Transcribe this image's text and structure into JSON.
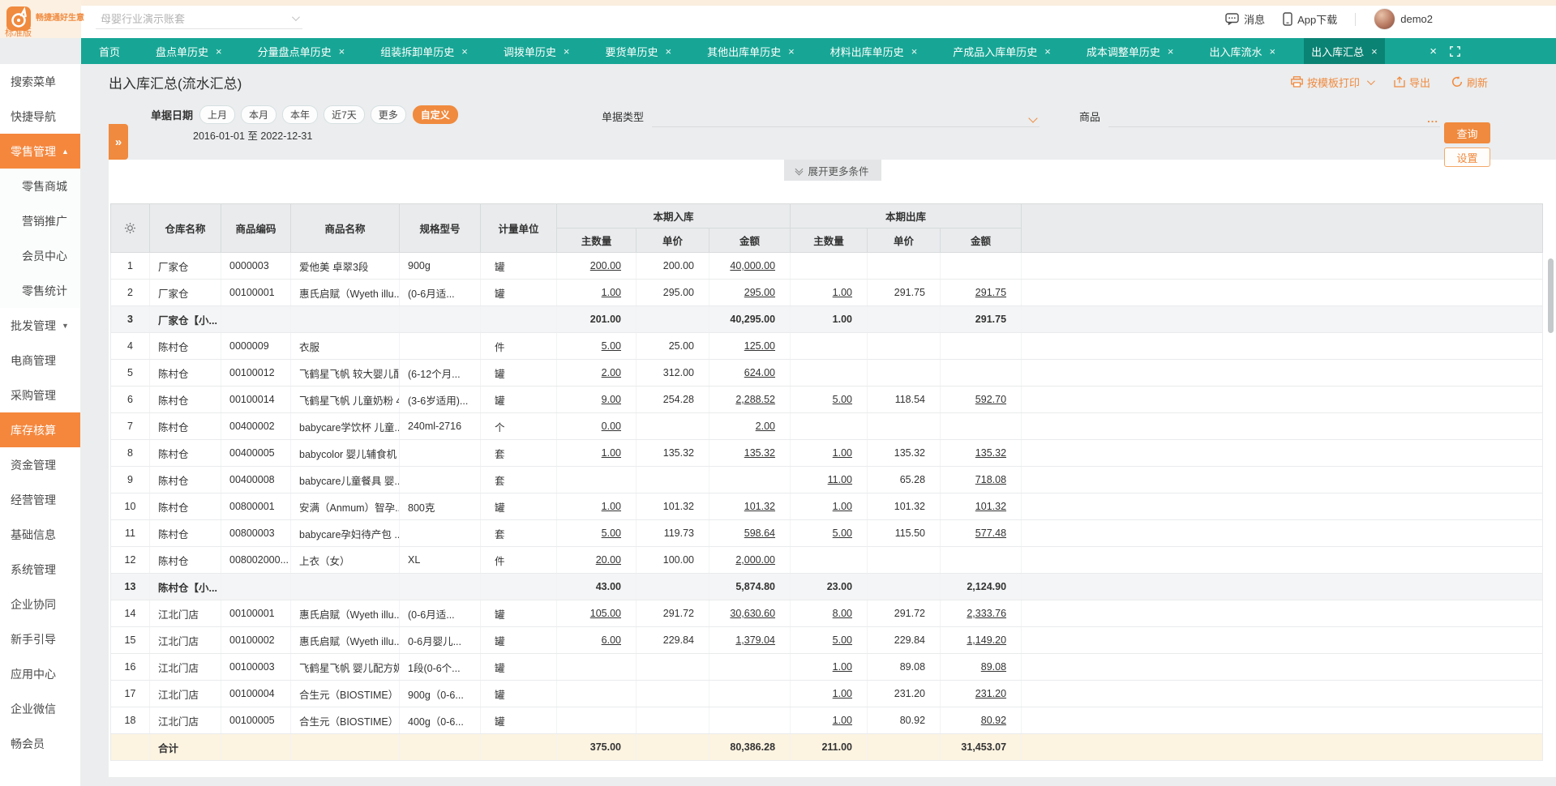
{
  "topbar": {
    "brand": "畅捷通好生意",
    "edition": "标准版",
    "account": "母婴行业演示账套",
    "messages": "消息",
    "app_download": "App下载",
    "username": "demo2"
  },
  "tabbar": {
    "tabs": [
      {
        "key": "home",
        "label": "首页",
        "closable": false,
        "active": false
      },
      {
        "key": "inventory-check-history",
        "label": "盘点单历史",
        "closable": true,
        "active": false
      },
      {
        "key": "weighed-check-history",
        "label": "分量盘点单历史",
        "closable": true,
        "active": false
      },
      {
        "key": "assembly-history",
        "label": "组装拆卸单历史",
        "closable": true,
        "active": false
      },
      {
        "key": "transfer-history",
        "label": "调拨单历史",
        "closable": true,
        "active": false
      },
      {
        "key": "requisition-history",
        "label": "要货单历史",
        "closable": true,
        "active": false
      },
      {
        "key": "other-outbound-history",
        "label": "其他出库单历史",
        "closable": true,
        "active": false
      },
      {
        "key": "material-outbound-history",
        "label": "材料出库单历史",
        "closable": true,
        "active": false
      },
      {
        "key": "finished-inbound-history",
        "label": "产成品入库单历史",
        "closable": true,
        "active": false
      },
      {
        "key": "cost-adjust-history",
        "label": "成本调整单历史",
        "closable": true,
        "active": false
      },
      {
        "key": "inout-flow",
        "label": "出入库流水",
        "closable": true,
        "active": false
      },
      {
        "key": "inout-summary",
        "label": "出入库汇总",
        "closable": true,
        "active": true
      }
    ]
  },
  "sidebar": {
    "items": [
      {
        "key": "search-menu",
        "label": "搜索菜单"
      },
      {
        "key": "quick-nav",
        "label": "快捷导航"
      },
      {
        "key": "retail-mgmt",
        "label": "零售管理",
        "active": true,
        "arrow": "up"
      },
      {
        "key": "retail-mall",
        "label": "零售商城",
        "sub": true
      },
      {
        "key": "marketing",
        "label": "营销推广",
        "sub": true
      },
      {
        "key": "member-center",
        "label": "会员中心",
        "sub": true
      },
      {
        "key": "retail-stats",
        "label": "零售统计",
        "sub": true
      },
      {
        "key": "wholesale-mgmt",
        "label": "批发管理",
        "arrow": "down"
      },
      {
        "key": "ecommerce-mgmt",
        "label": "电商管理"
      },
      {
        "key": "purchase-mgmt",
        "label": "采购管理"
      },
      {
        "key": "inventory-accounting",
        "label": "库存核算",
        "active": true
      },
      {
        "key": "finance-mgmt",
        "label": "资金管理"
      },
      {
        "key": "operation-mgmt",
        "label": "经营管理"
      },
      {
        "key": "basic-info",
        "label": "基础信息"
      },
      {
        "key": "system-mgmt",
        "label": "系统管理"
      },
      {
        "key": "enterprise-collab",
        "label": "企业协同"
      },
      {
        "key": "newbie-guide",
        "label": "新手引导"
      },
      {
        "key": "app-center",
        "label": "应用中心"
      },
      {
        "key": "enterprise-wechat",
        "label": "企业微信"
      },
      {
        "key": "chang-member",
        "label": "畅会员"
      }
    ]
  },
  "page": {
    "title": "出入库汇总(流水汇总)",
    "actions": {
      "print": "按模板打印",
      "export": "导出",
      "refresh": "刷新"
    }
  },
  "filters": {
    "date_label": "单据日期",
    "date_presets": [
      "上月",
      "本月",
      "本年",
      "近7天",
      "更多"
    ],
    "custom_label": "自定义",
    "date_range": "2016-01-01 至 2022-12-31",
    "doc_type_label": "单据类型",
    "product_label": "商品",
    "search_label": "查询",
    "settings_label": "设置",
    "expand_label": "展开更多条件"
  },
  "icons": {
    "close": "×",
    "arrow_up": "▲",
    "arrow_down": "▼",
    "double_right": "»",
    "ellipsis": "..."
  },
  "colors": {
    "accent_orange": "#f08a3e",
    "teal": "#17a695",
    "teal_active_tab": "#0a8374",
    "total_row_bg": "#fcf3e1",
    "header_bg": "#e9ebed"
  },
  "table": {
    "columns": {
      "warehouse": "仓库名称",
      "code": "商品编码",
      "name": "商品名称",
      "spec": "规格型号",
      "unit": "计量单位"
    },
    "group_in": "本期入库",
    "group_out": "本期出库",
    "sub_cols": [
      "主数量",
      "单价",
      "金额"
    ],
    "rows": [
      {
        "type": "data",
        "n": "1",
        "warehouse": "厂家仓",
        "code": "0000003",
        "name": "爱他美 卓翠3段",
        "spec": "900g",
        "unit": "罐",
        "in_qty": "200.00",
        "in_price": "200.00",
        "in_amt": "40,000.00",
        "out_qty": "",
        "out_price": "",
        "out_amt": ""
      },
      {
        "type": "data",
        "n": "2",
        "warehouse": "厂家仓",
        "code": "00100001",
        "name": "惠氏启赋（Wyeth illu...",
        "spec": "(0-6月适...",
        "unit": "罐",
        "in_qty": "1.00",
        "in_price": "295.00",
        "in_amt": "295.00",
        "out_qty": "1.00",
        "out_price": "291.75",
        "out_amt": "291.75"
      },
      {
        "type": "subtotal",
        "n": "3",
        "warehouse": "厂家仓【小...",
        "code": "",
        "name": "",
        "spec": "",
        "unit": "",
        "in_qty": "201.00",
        "in_price": "",
        "in_amt": "40,295.00",
        "out_qty": "1.00",
        "out_price": "",
        "out_amt": "291.75"
      },
      {
        "type": "data",
        "n": "4",
        "warehouse": "陈村仓",
        "code": "0000009",
        "name": "衣服",
        "spec": "",
        "unit": "件",
        "in_qty": "5.00",
        "in_price": "25.00",
        "in_amt": "125.00",
        "out_qty": "",
        "out_price": "",
        "out_amt": ""
      },
      {
        "type": "data",
        "n": "5",
        "warehouse": "陈村仓",
        "code": "00100012",
        "name": "飞鹤星飞帆 较大婴儿配...",
        "spec": "(6-12个月...",
        "unit": "罐",
        "in_qty": "2.00",
        "in_price": "312.00",
        "in_amt": "624.00",
        "out_qty": "",
        "out_price": "",
        "out_amt": ""
      },
      {
        "type": "data",
        "n": "6",
        "warehouse": "陈村仓",
        "code": "00100014",
        "name": "飞鹤星飞帆 儿童奶粉 4...",
        "spec": "(3-6岁适用)...",
        "unit": "罐",
        "in_qty": "9.00",
        "in_price": "254.28",
        "in_amt": "2,288.52",
        "out_qty": "5.00",
        "out_price": "118.54",
        "out_amt": "592.70"
      },
      {
        "type": "data",
        "n": "7",
        "warehouse": "陈村仓",
        "code": "00400002",
        "name": "babycare学饮杯 儿童...",
        "spec": "240ml-2716",
        "unit": "个",
        "in_qty": "0.00",
        "in_price": "",
        "in_amt": "2.00",
        "out_qty": "",
        "out_price": "",
        "out_amt": ""
      },
      {
        "type": "data",
        "n": "8",
        "warehouse": "陈村仓",
        "code": "00400005",
        "name": "babycolor 婴儿辅食机 ...",
        "spec": "",
        "unit": "套",
        "in_qty": "1.00",
        "in_price": "135.32",
        "in_amt": "135.32",
        "out_qty": "1.00",
        "out_price": "135.32",
        "out_amt": "135.32"
      },
      {
        "type": "data",
        "n": "9",
        "warehouse": "陈村仓",
        "code": "00400008",
        "name": "babycare儿童餐具 婴...",
        "spec": "",
        "unit": "套",
        "in_qty": "",
        "in_price": "",
        "in_amt": "",
        "out_qty": "11.00",
        "out_price": "65.28",
        "out_amt": "718.08"
      },
      {
        "type": "data",
        "n": "10",
        "warehouse": "陈村仓",
        "code": "00800001",
        "name": "安满（Anmum）智孕...",
        "spec": "800克",
        "unit": "罐",
        "in_qty": "1.00",
        "in_price": "101.32",
        "in_amt": "101.32",
        "out_qty": "1.00",
        "out_price": "101.32",
        "out_amt": "101.32"
      },
      {
        "type": "data",
        "n": "11",
        "warehouse": "陈村仓",
        "code": "00800003",
        "name": "babycare孕妇待产包 ...",
        "spec": "",
        "unit": "套",
        "in_qty": "5.00",
        "in_price": "119.73",
        "in_amt": "598.64",
        "out_qty": "5.00",
        "out_price": "115.50",
        "out_amt": "577.48"
      },
      {
        "type": "data",
        "n": "12",
        "warehouse": "陈村仓",
        "code": "008002000...",
        "name": "上衣（女）",
        "spec": "XL",
        "unit": "件",
        "in_qty": "20.00",
        "in_price": "100.00",
        "in_amt": "2,000.00",
        "out_qty": "",
        "out_price": "",
        "out_amt": ""
      },
      {
        "type": "subtotal",
        "n": "13",
        "warehouse": "陈村仓【小...",
        "code": "",
        "name": "",
        "spec": "",
        "unit": "",
        "in_qty": "43.00",
        "in_price": "",
        "in_amt": "5,874.80",
        "out_qty": "23.00",
        "out_price": "",
        "out_amt": "2,124.90"
      },
      {
        "type": "data",
        "n": "14",
        "warehouse": "江北门店",
        "code": "00100001",
        "name": "惠氏启赋（Wyeth illu...",
        "spec": "(0-6月适...",
        "unit": "罐",
        "in_qty": "105.00",
        "in_price": "291.72",
        "in_amt": "30,630.60",
        "out_qty": "8.00",
        "out_price": "291.72",
        "out_amt": "2,333.76"
      },
      {
        "type": "data",
        "n": "15",
        "warehouse": "江北门店",
        "code": "00100002",
        "name": "惠氏启赋（Wyeth illu...",
        "spec": "0-6月婴儿...",
        "unit": "罐",
        "in_qty": "6.00",
        "in_price": "229.84",
        "in_amt": "1,379.04",
        "out_qty": "5.00",
        "out_price": "229.84",
        "out_amt": "1,149.20"
      },
      {
        "type": "data",
        "n": "16",
        "warehouse": "江北门店",
        "code": "00100003",
        "name": "飞鹤星飞帆 婴儿配方奶...",
        "spec": "1段(0-6个...",
        "unit": "罐",
        "in_qty": "",
        "in_price": "",
        "in_amt": "",
        "out_qty": "1.00",
        "out_price": "89.08",
        "out_amt": "89.08"
      },
      {
        "type": "data",
        "n": "17",
        "warehouse": "江北门店",
        "code": "00100004",
        "name": "合生元（BIOSTIME）...",
        "spec": "900g（0-6...",
        "unit": "罐",
        "in_qty": "",
        "in_price": "",
        "in_amt": "",
        "out_qty": "1.00",
        "out_price": "231.20",
        "out_amt": "231.20"
      },
      {
        "type": "data",
        "n": "18",
        "warehouse": "江北门店",
        "code": "00100005",
        "name": "合生元（BIOSTIME）...",
        "spec": "400g（0-6...",
        "unit": "罐",
        "in_qty": "",
        "in_price": "",
        "in_amt": "",
        "out_qty": "1.00",
        "out_price": "80.92",
        "out_amt": "80.92"
      }
    ],
    "total": {
      "label": "合计",
      "in_qty": "375.00",
      "in_amt": "80,386.28",
      "out_qty": "211.00",
      "out_amt": "31,453.07"
    }
  }
}
